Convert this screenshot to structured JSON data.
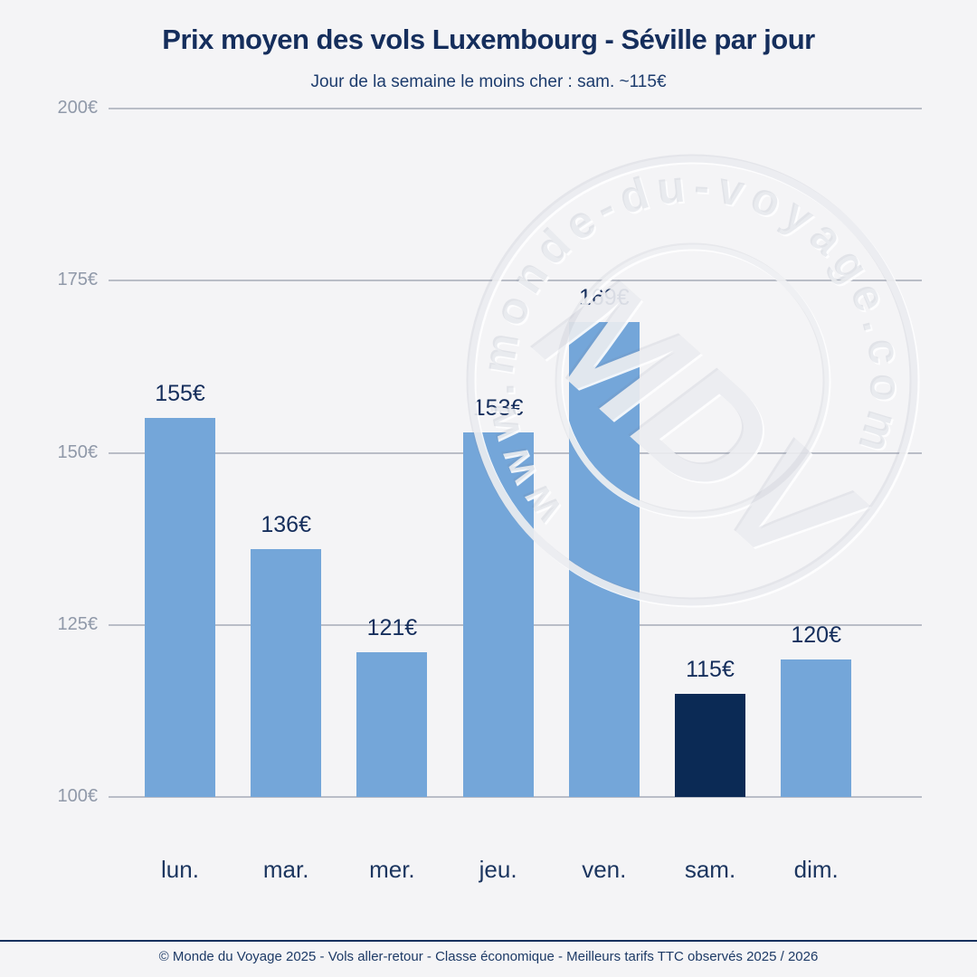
{
  "header": {
    "title": "Prix moyen des vols Luxembourg - Séville par jour",
    "subtitle": "Jour de la semaine le moins cher : sam. ~115€"
  },
  "chart_data": {
    "type": "bar",
    "title": "Prix moyen des vols Luxembourg - Séville par jour",
    "subtitle": "Jour de la semaine le moins cher : sam. ~115€",
    "categories": [
      "lun.",
      "mar.",
      "mer.",
      "jeu.",
      "ven.",
      "sam.",
      "dim."
    ],
    "values": [
      155,
      136,
      121,
      153,
      169,
      115,
      120
    ],
    "value_labels": [
      "155€",
      "136€",
      "121€",
      "153€",
      "169€",
      "115€",
      "120€"
    ],
    "xlabel": "",
    "ylabel": "",
    "ylim": [
      100,
      200
    ],
    "y_ticks": [
      100,
      125,
      150,
      175,
      200
    ],
    "y_tick_labels": [
      "100€",
      "125€",
      "150€",
      "175€",
      "200€"
    ],
    "grid": true,
    "legend": "none",
    "bar_color": "#74a6d9",
    "highlight_index": 5,
    "highlight_color": "#0b2a55",
    "cheapest_day": "sam.",
    "cheapest_price": "~115€"
  },
  "watermark": {
    "ring_text": "www.monde-du-voyage.com",
    "center_text": "MDV"
  },
  "footer": {
    "text": "© Monde du Voyage 2025 - Vols aller-retour - Classe économique - Meilleurs tarifs TTC observés 2025 / 2026"
  },
  "colors": {
    "background": "#f4f4f6",
    "title": "#152e5c",
    "subtitle": "#1d3c6d",
    "axis_labels": "#9099a9",
    "gridline": "#b9bdc7",
    "bar": "#74a6d9",
    "highlight_bar": "#0b2a55",
    "footer_line": "#15305e"
  }
}
